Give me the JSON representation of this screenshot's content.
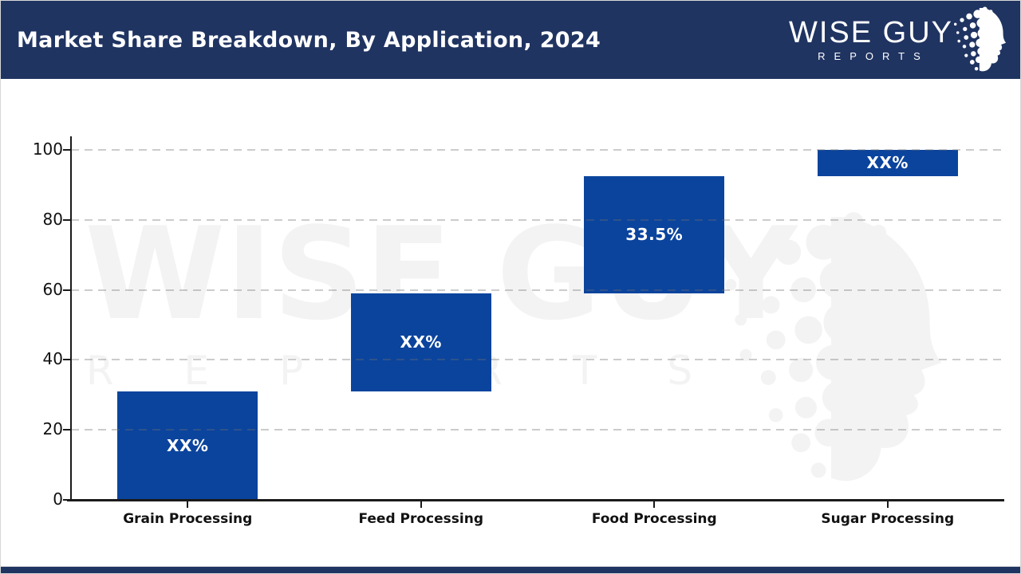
{
  "header": {
    "title": "Market Share Breakdown, By Application, 2024",
    "logo": {
      "wordmark": "WISE GUY",
      "subtext": "REPORTS"
    }
  },
  "watermark": {
    "wordmark": "WISE GUY",
    "subtext": "R E P O R T S"
  },
  "chart_data": {
    "type": "bar",
    "subtype": "floating-waterfall",
    "title": "Market Share Breakdown, By Application, 2024",
    "categories": [
      "Grain Processing",
      "Feed Processing",
      "Food Processing",
      "Sugar Processing"
    ],
    "bars": [
      {
        "category": "Grain Processing",
        "start": 0,
        "end": 31,
        "label": "XX%"
      },
      {
        "category": "Feed Processing",
        "start": 31,
        "end": 59,
        "label": "XX%"
      },
      {
        "category": "Food Processing",
        "start": 59,
        "end": 92.5,
        "label": "33.5%"
      },
      {
        "category": "Sugar Processing",
        "start": 92.5,
        "end": 100,
        "label": "XX%"
      }
    ],
    "yticks": [
      0,
      20,
      40,
      60,
      80,
      100
    ],
    "ylim": [
      0,
      104
    ],
    "xlabel": "",
    "ylabel": "",
    "grid": "dashed-horizontal",
    "legend": "none",
    "bar_color": "#0b449d"
  },
  "colors": {
    "header_bg": "#203462",
    "footer_bg": "#203462",
    "bar": "#0b449d",
    "gridline": "#c9c9c9",
    "axis": "#1a1a1a",
    "watermark": "#f3f3f3"
  }
}
